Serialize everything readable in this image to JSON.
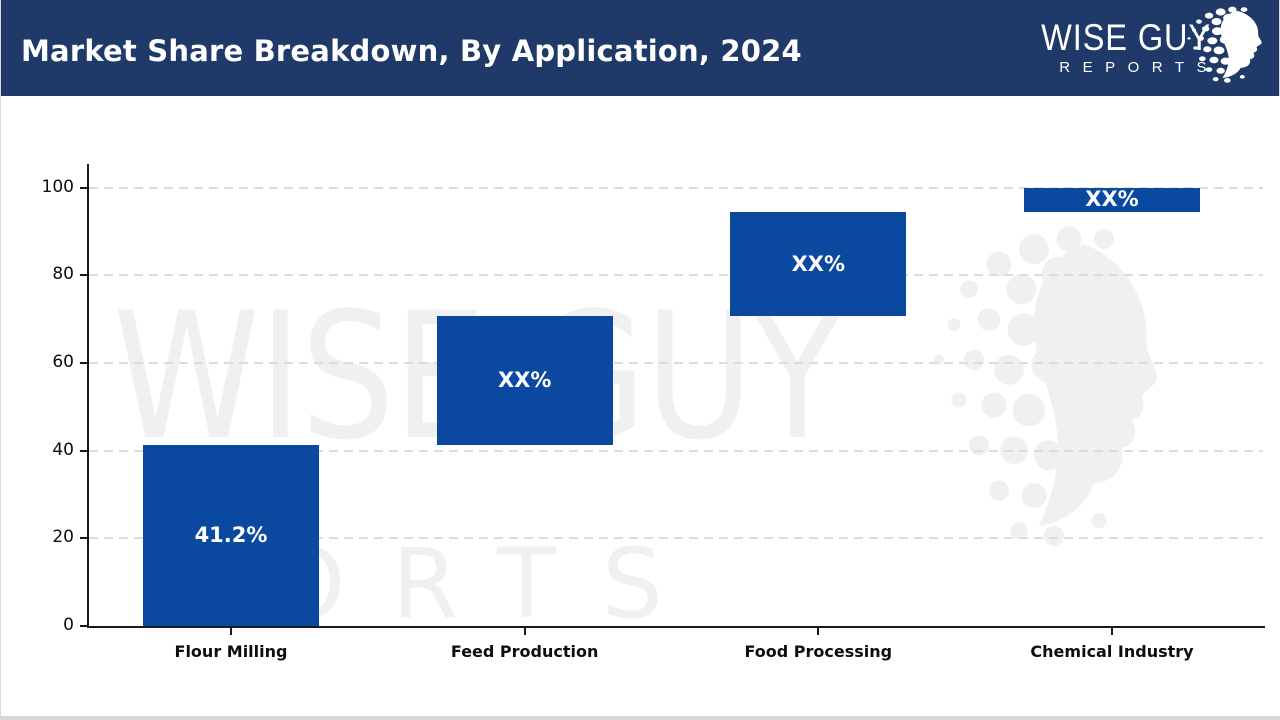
{
  "header": {
    "title": "Market Share Breakdown, By Application, 2024",
    "bg_color": "#1f3a68"
  },
  "logo": {
    "line1": "WISE GUY",
    "line2": "REPORTS"
  },
  "watermark": {
    "line1": "WISE GUY",
    "line2": "PORTS"
  },
  "chart_data": {
    "type": "bar",
    "subtype": "floating-waterfall",
    "title": "Market Share Breakdown, By Application, 2024",
    "categories": [
      "Flour Milling",
      "Feed Production",
      "Food Processing",
      "Chemical Industry"
    ],
    "bars": [
      {
        "category": "Flour Milling",
        "start": 0,
        "end": 41.2,
        "label": "41.2%"
      },
      {
        "category": "Feed Production",
        "start": 41.2,
        "end": 70.6,
        "label": "XX%"
      },
      {
        "category": "Food Processing",
        "start": 70.6,
        "end": 94.3,
        "label": "XX%"
      },
      {
        "category": "Chemical Industry",
        "start": 94.3,
        "end": 100,
        "label": "XX%"
      }
    ],
    "ylim": [
      0,
      100
    ],
    "yticks": [
      0,
      20,
      40,
      60,
      80,
      100
    ],
    "grid": "horizontal-dashed",
    "legend": "none",
    "bar_color": "#0b489f",
    "label_color": "#ffffff",
    "axis_color": "#1a1a1a",
    "grid_color": "#dcdcdc"
  }
}
